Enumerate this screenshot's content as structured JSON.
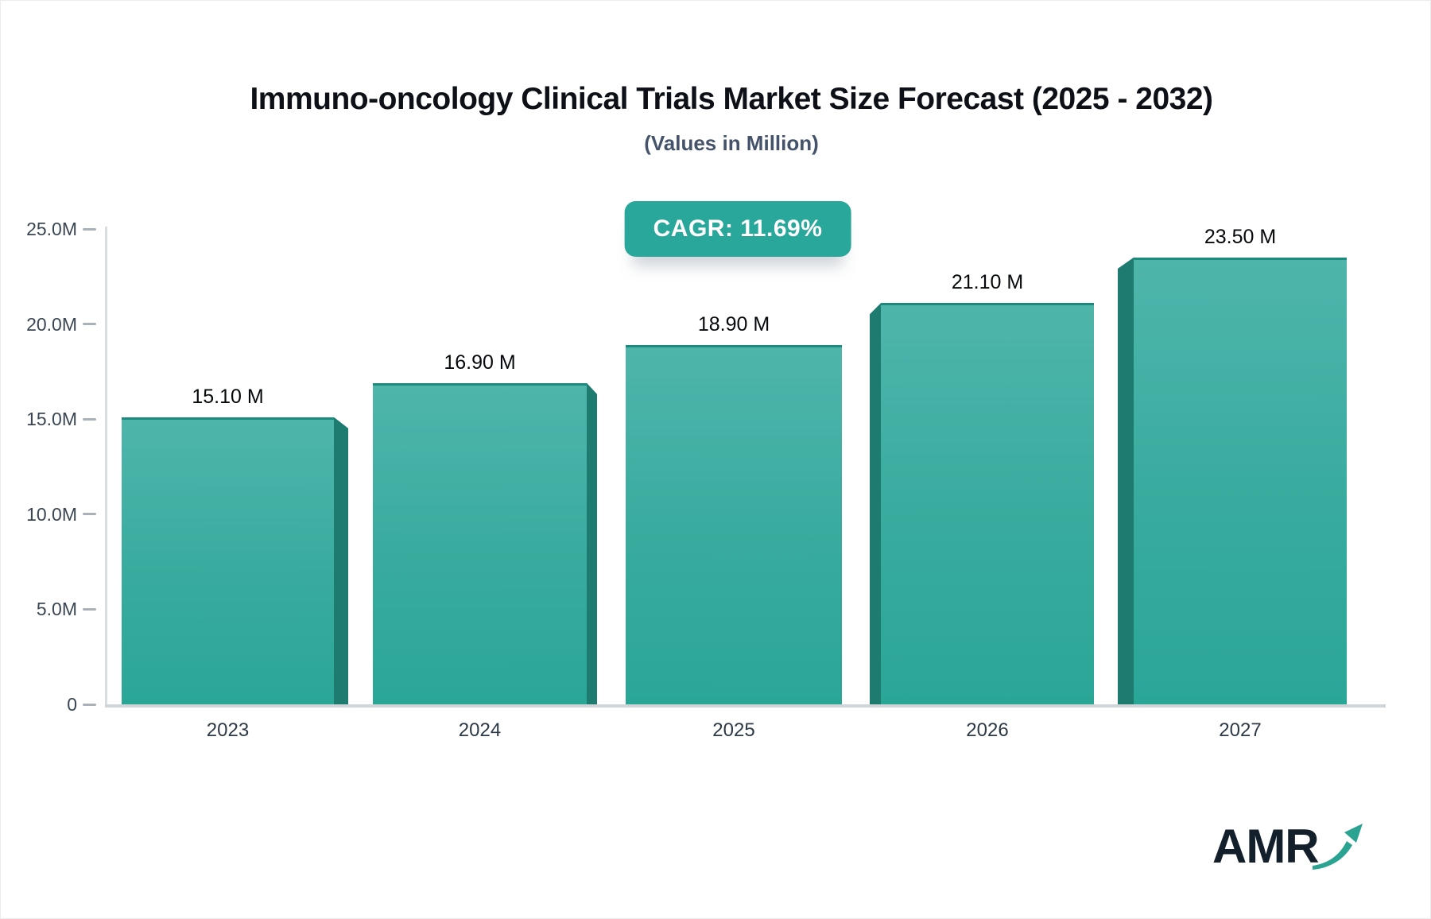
{
  "page": {
    "background": "#ffffff",
    "border_color": "#ececef"
  },
  "header": {
    "title": "Immuno-oncology Clinical Trials Market Size Forecast (2025 - 2032)",
    "subtitle": "(Values in Million)"
  },
  "cagr_badge": {
    "label": "CAGR: 11.69%",
    "background": "#2aa79b",
    "text_color": "#ffffff"
  },
  "chart_data": {
    "type": "bar",
    "title": "Immuno-oncology Clinical Trials Market Size Forecast (2025 - 2032)",
    "subtitle": "(Values in Million)",
    "unit": "Million",
    "cagr_percent": 11.69,
    "categories": [
      "2023",
      "2024",
      "2025",
      "2026",
      "2027"
    ],
    "values": [
      15.1,
      16.9,
      18.9,
      21.1,
      23.5
    ],
    "bar_labels": [
      "15.10 M",
      "16.90 M",
      "18.90 M",
      "21.10 M",
      "23.50 M"
    ],
    "y_axis": {
      "min": 0,
      "max": 25,
      "ticks": [
        {
          "label": "25.0M",
          "value": 25
        },
        {
          "label": "20.0M",
          "value": 20
        },
        {
          "label": "15.0M",
          "value": 15
        },
        {
          "label": "10.0M",
          "value": 10
        },
        {
          "label": "5.0M",
          "value": 5
        },
        {
          "label": "0",
          "value": 0
        }
      ]
    },
    "grid": false,
    "legend": false,
    "colors": {
      "bar_top": "#4fb5ab",
      "bar_mid": "#38ab9e",
      "bar_bottom": "#2aa697",
      "bar_side": "#1e7b6f",
      "bar_top_edge": "#1c8a7d"
    }
  },
  "logo": {
    "text": "AMR",
    "text_color": "#131f2b",
    "arrow_color": "#2aa392"
  }
}
